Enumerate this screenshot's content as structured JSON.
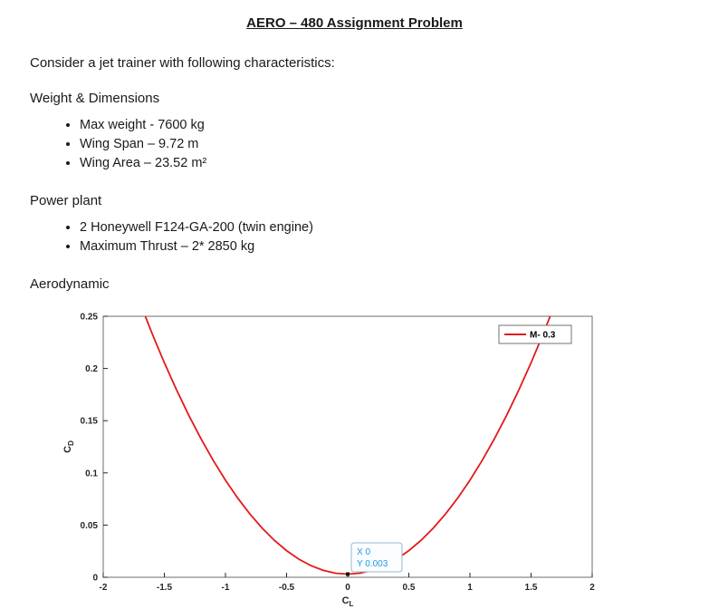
{
  "page": {
    "title": "AERO – 480 Assignment Problem",
    "intro": "Consider a jet trainer with following characteristics:",
    "sections": [
      {
        "heading": "Weight & Dimensions",
        "bullets": [
          "Max weight - 7600 kg",
          "Wing Span – 9.72 m",
          "Wing Area – 23.52 m²"
        ]
      },
      {
        "heading": "Power plant",
        "bullets": [
          "2 Honeywell F124-GA-200 (twin engine)",
          "Maximum Thrust – 2* 2850 kg"
        ]
      },
      {
        "heading": "Aerodynamic",
        "bullets": []
      }
    ]
  },
  "chart_data": {
    "type": "line",
    "title": "",
    "xlabel": {
      "base": "C",
      "sub": "L"
    },
    "ylabel": {
      "base": "C",
      "sub": "D"
    },
    "xlim": [
      -2,
      2
    ],
    "ylim": [
      0,
      0.25
    ],
    "grid": false,
    "x_tick_values": [
      -2,
      -1.5,
      -1,
      -0.5,
      0,
      0.5,
      1,
      1.5,
      2
    ],
    "x_tick_labels": [
      "-2",
      "-1.5",
      "-1",
      "-0.5",
      "0",
      "0.5",
      "1",
      "1.5",
      "2"
    ],
    "y_tick_values": [
      0,
      0.05,
      0.1,
      0.15,
      0.2,
      0.25
    ],
    "y_tick_labels": [
      "0",
      "0.05",
      "0.1",
      "0.15",
      "0.2",
      "0.25"
    ],
    "legend": {
      "label": "M- 0.3",
      "position": "northeast"
    },
    "series": [
      {
        "name": "M- 0.3",
        "color": "#e21a1a",
        "x": [
          -2,
          -1.9,
          -1.8,
          -1.7,
          -1.6,
          -1.5,
          -1.4,
          -1.3,
          -1.2,
          -1.1,
          -1,
          -0.9,
          -0.8,
          -0.7,
          -0.6,
          -0.5,
          -0.4,
          -0.3,
          -0.2,
          -0.1,
          0,
          0.1,
          0.2,
          0.3,
          0.4,
          0.5,
          0.6,
          0.7,
          0.8,
          0.9,
          1,
          1.1,
          1.2,
          1.3,
          1.4,
          1.5,
          1.6,
          1.7,
          1.8,
          1.9,
          2
        ],
        "y": [
          0.366,
          0.3279,
          0.2946,
          0.2631,
          0.2334,
          0.2055,
          0.1794,
          0.1551,
          0.1326,
          0.1119,
          0.093,
          0.0759,
          0.0606,
          0.0471,
          0.0354,
          0.0255,
          0.0174,
          0.0111,
          0.0066,
          0.0039,
          0.003,
          0.0039,
          0.0066,
          0.0111,
          0.0174,
          0.0255,
          0.0354,
          0.0471,
          0.0606,
          0.0759,
          0.093,
          0.1119,
          0.1326,
          0.1551,
          0.1794,
          0.2055,
          0.2334,
          0.2631,
          0.2946,
          0.3279,
          0.366
        ]
      }
    ],
    "datatip": {
      "x": 0,
      "y": 0.003,
      "line1": "X 0",
      "line2": "Y 0.003",
      "color": "#1e9be0"
    }
  }
}
